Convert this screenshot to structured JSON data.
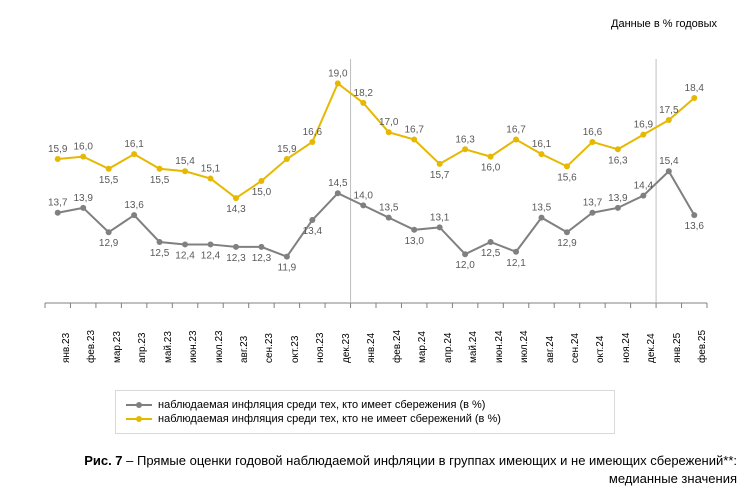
{
  "unit_note": "Данные в % годовых",
  "chart": {
    "type": "line",
    "categories": [
      "янв.23",
      "фев.23",
      "мар.23",
      "апр.23",
      "май.23",
      "июн.23",
      "июл.23",
      "авг.23",
      "сен.23",
      "окт.23",
      "ноя.23",
      "дек.23",
      "янв.24",
      "фев.24",
      "мар.24",
      "апр.24",
      "май.24",
      "июн.24",
      "июл.24",
      "авг.24",
      "сен.24",
      "окт.24",
      "ноя.24",
      "дек.24",
      "янв.25",
      "фев.25"
    ],
    "series": [
      {
        "key": "with_savings",
        "color": "#808080",
        "values": [
          13.7,
          13.9,
          12.9,
          13.6,
          12.5,
          12.4,
          12.4,
          12.3,
          12.3,
          11.9,
          13.4,
          14.5,
          14.0,
          13.5,
          13.0,
          13.1,
          12.0,
          12.5,
          12.1,
          13.5,
          12.9,
          13.7,
          13.9,
          14.4,
          15.4,
          13.6
        ],
        "label_above": [
          true,
          true,
          false,
          true,
          false,
          false,
          false,
          false,
          false,
          false,
          false,
          true,
          true,
          true,
          false,
          true,
          false,
          false,
          false,
          true,
          false,
          true,
          true,
          true,
          true,
          false
        ]
      },
      {
        "key": "without_savings",
        "color": "#e6b800",
        "values": [
          15.9,
          16.0,
          15.5,
          16.1,
          15.5,
          15.4,
          15.1,
          14.3,
          15.0,
          15.9,
          16.6,
          19.0,
          18.2,
          17.0,
          16.7,
          15.7,
          16.3,
          16.0,
          16.7,
          16.1,
          15.6,
          16.6,
          16.3,
          16.9,
          17.5,
          18.4
        ],
        "label_above": [
          true,
          true,
          false,
          true,
          false,
          true,
          true,
          false,
          false,
          true,
          true,
          true,
          true,
          true,
          true,
          false,
          true,
          false,
          true,
          true,
          false,
          true,
          false,
          true,
          true,
          true
        ]
      }
    ],
    "ylim": [
      10,
      20
    ],
    "y_ticks": [],
    "x_sep_after": [
      11,
      23
    ],
    "marker_radius": 3.0,
    "line_width": 2.0,
    "label_fontsize": 10,
    "label_color": "#595959",
    "sep_color": "#bfbfbf",
    "baseline_color": "#808080",
    "tick_color": "#808080",
    "background_color": "#ffffff"
  },
  "legend": {
    "items": [
      {
        "key": "with_savings",
        "color": "#808080",
        "text": "наблюдаемая инфляция среди тех, кто имеет сбережения (в %)"
      },
      {
        "key": "without_savings",
        "color": "#e6b800",
        "text": "наблюдаемая инфляция среди тех, кто не имеет сбережений (в %)"
      }
    ]
  },
  "caption_bold": "Рис. 7",
  "caption_rest": " – Прямые оценки годовой наблюдаемой инфляции в группах имеющих и не имеющих сбережений**: медианные значения"
}
